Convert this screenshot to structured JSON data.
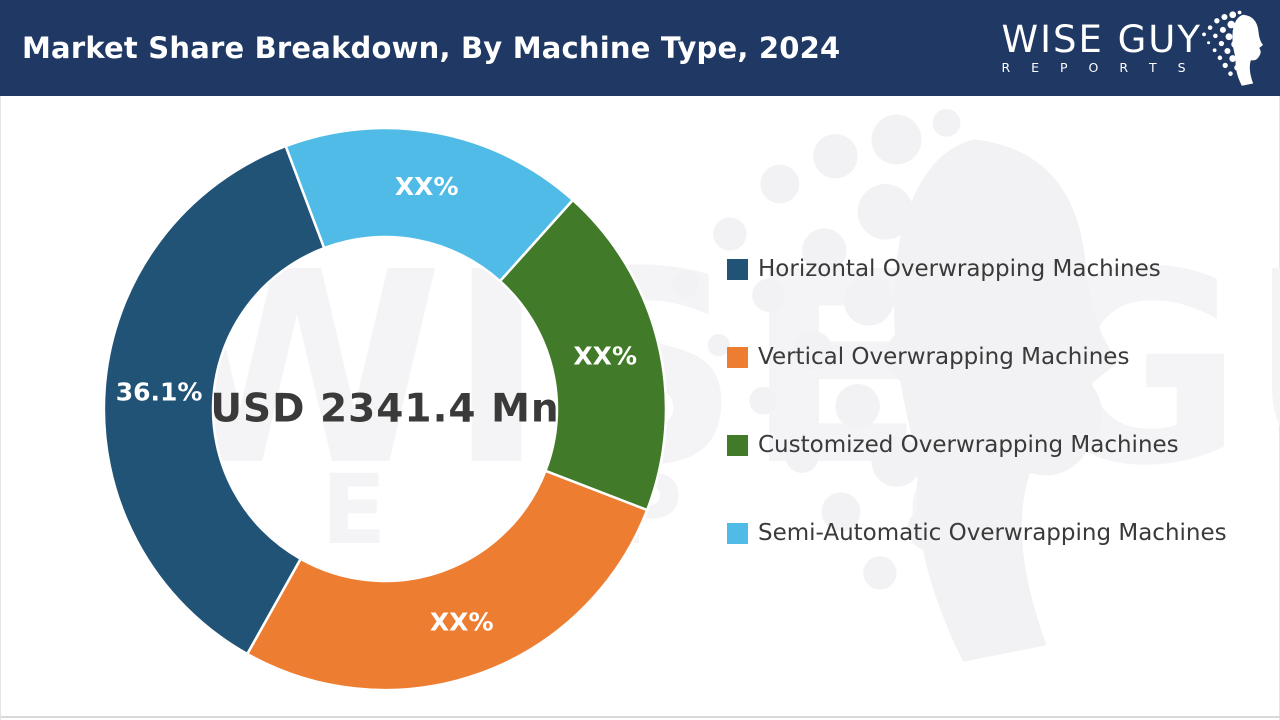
{
  "header": {
    "title": "Market Share Breakdown, By Machine Type, 2024",
    "logo": {
      "name": "WISE GUY",
      "tagline": "R E P O R T S"
    }
  },
  "watermark": {
    "line1": "WISE GU",
    "line2": "E P O"
  },
  "chart_data": {
    "type": "pie",
    "subtype": "donut",
    "title": "Market Share Breakdown, By Machine Type, 2024",
    "center_label": "USD 2341.4 Mn",
    "legend_position": "right",
    "start_angle_deg": 110.7,
    "direction": "counterclockwise",
    "inner_radius_ratio": 0.612,
    "series": [
      {
        "name": "Horizontal Overwrapping Machines",
        "slice_label": "36.1%",
        "value": 36.1,
        "estimated": false,
        "color": "#215377"
      },
      {
        "name": "Vertical Overwrapping Machines",
        "slice_label": "XX%",
        "value": 27.3,
        "estimated": true,
        "color": "#ED7D31"
      },
      {
        "name": "Customized Overwrapping Machines",
        "slice_label": "XX%",
        "value": 19.2,
        "estimated": true,
        "color": "#417A28"
      },
      {
        "name": "Semi-Automatic Overwrapping Machines",
        "slice_label": "XX%",
        "value": 17.4,
        "estimated": true,
        "color": "#4FBBE6"
      }
    ]
  },
  "colors": {
    "header_bg": "#1F3864",
    "center_text": "#3A3A3A",
    "legend_text": "#3A3A3A",
    "slice_label_text": "#FFFFFF",
    "watermark": "#F4F4F6",
    "bottom_rule": "#D9D9D9"
  }
}
